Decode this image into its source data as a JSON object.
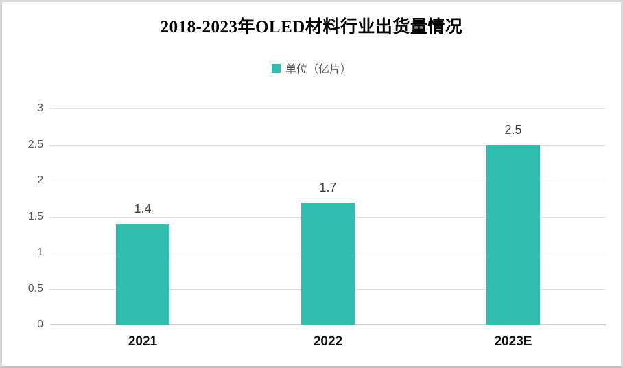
{
  "chart_data": {
    "type": "bar",
    "title": "2018-2023年OLED材料行业出货量情况",
    "legend": "单位（亿片）",
    "legend_position": "top-center",
    "categories": [
      "2021",
      "2022",
      "2023E"
    ],
    "values": [
      1.4,
      1.7,
      2.5
    ],
    "data_labels": [
      "1.4",
      "1.7",
      "2.5"
    ],
    "xlabel": "",
    "ylabel": "",
    "ylim": [
      0,
      3
    ],
    "ytick_step": 0.5,
    "yticks": [
      0,
      0.5,
      1,
      1.5,
      2,
      2.5,
      3
    ],
    "ytick_labels": [
      "0",
      "0.5",
      "1",
      "1.5",
      "2",
      "2.5",
      "3"
    ],
    "grid": "horizontal",
    "bar_color": "#30beb0",
    "gridline_color": "#e4e4e4",
    "axis_line_color": "#cfcfcf"
  }
}
